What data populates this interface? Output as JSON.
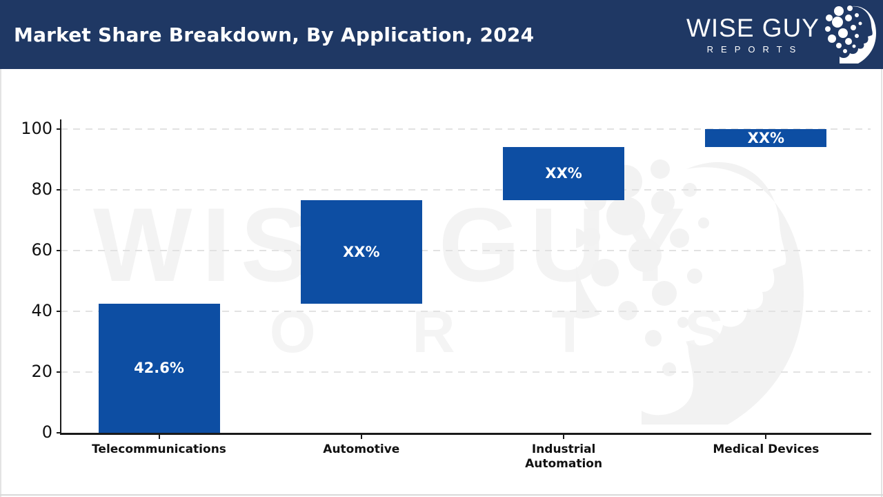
{
  "header": {
    "title": "Market Share Breakdown, By Application, 2024",
    "logo": {
      "line1": "WISE GUY",
      "line2": "REPORTS",
      "icon": "dotted-head-profile"
    }
  },
  "watermark": {
    "line1": "WISE GUY",
    "line2": "P O R T S"
  },
  "chart_data": {
    "type": "bar",
    "subtype": "waterfall",
    "title": "Market Share Breakdown, By Application, 2024",
    "categories": [
      "Telecommunications",
      "Automotive",
      "Industrial Automation",
      "Medical Devices"
    ],
    "category_lines": [
      [
        "Telecommunications"
      ],
      [
        "Automotive"
      ],
      [
        "Industrial",
        "Automation"
      ],
      [
        "Medical Devices"
      ]
    ],
    "segments": [
      {
        "category": "Telecommunications",
        "start": 0,
        "end": 42.6,
        "label": "42.6%"
      },
      {
        "category": "Automotive",
        "start": 42.6,
        "end": 76.6,
        "label": "XX%"
      },
      {
        "category": "Industrial Automation",
        "start": 76.6,
        "end": 94.1,
        "label": "XX%"
      },
      {
        "category": "Medical Devices",
        "start": 94.1,
        "end": 100,
        "label": "XX%"
      }
    ],
    "ylim": [
      0,
      100
    ],
    "yticks": [
      0,
      20,
      40,
      60,
      80,
      100
    ],
    "xlabel": "",
    "ylabel": "",
    "grid": "horizontal-dashed",
    "legend": "none",
    "bar_color": "#0d4ea3",
    "bar_label_color": "#ffffff",
    "header_color": "#1f3864"
  }
}
